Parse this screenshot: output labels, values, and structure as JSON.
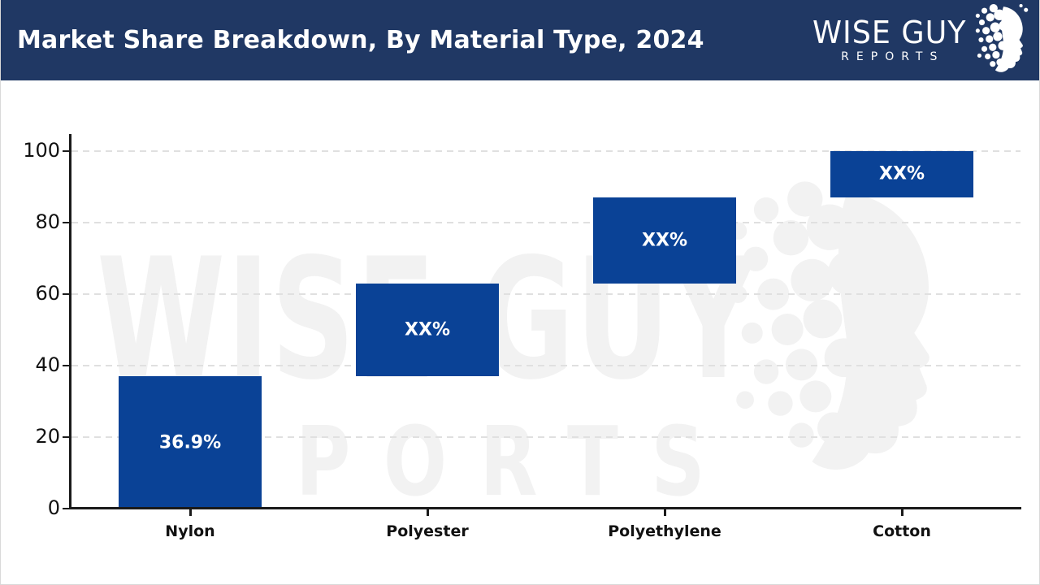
{
  "header": {
    "title": "Market Share Breakdown, By Material Type, 2024",
    "logo": {
      "line1": "WISE GUY",
      "line2": "REPORTS"
    }
  },
  "watermark": {
    "line1": "WISE GUY",
    "line2": "REPORTS"
  },
  "colors": {
    "header_bg": "#203864",
    "bar": "#0a4296",
    "bar_label": "#ffffff",
    "grid": "#e0e0e0",
    "axis": "#1a1a1a",
    "watermark": "#f2f2f2"
  },
  "chart_data": {
    "type": "bar",
    "subtype": "floating-waterfall",
    "title": "Market Share Breakdown, By Material Type, 2024",
    "categories": [
      "Nylon",
      "Polyester",
      "Polyethylene",
      "Cotton"
    ],
    "segments": [
      {
        "category": "Nylon",
        "start": 0,
        "end": 36.9,
        "label": "36.9%"
      },
      {
        "category": "Polyester",
        "start": 36.9,
        "end": 62.8,
        "label": "XX%"
      },
      {
        "category": "Polyethylene",
        "start": 62.8,
        "end": 86.9,
        "label": "XX%"
      },
      {
        "category": "Cotton",
        "start": 86.9,
        "end": 100,
        "label": "XX%"
      }
    ],
    "yticks": [
      0,
      20,
      40,
      60,
      80,
      100
    ],
    "ylim": [
      0,
      104.5
    ],
    "xlabel": "",
    "ylabel": "",
    "grid": "horizontal-dashed",
    "legend": "none"
  }
}
